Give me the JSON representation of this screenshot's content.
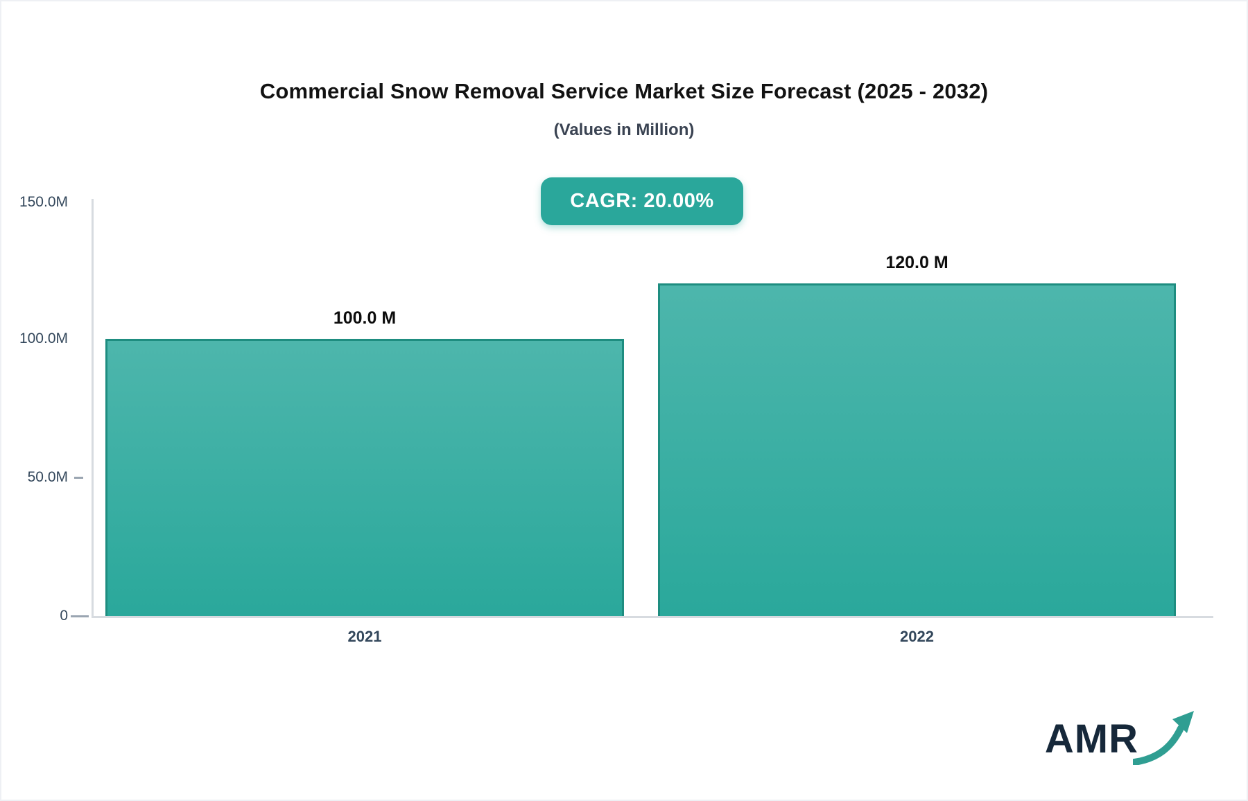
{
  "header": {
    "title": "Commercial Snow Removal Service Market Size Forecast (2025 - 2032)",
    "subtitle": "(Values in Million)"
  },
  "badge": {
    "label": "CAGR: 20.00%",
    "background": "#2aa79b",
    "text_color": "#ffffff"
  },
  "chart_data": {
    "type": "bar",
    "title": "Commercial Snow Removal Service Market Size Forecast (2025 - 2032)",
    "subtitle": "(Values in Million)",
    "unit": "Million",
    "cagr": "20.00%",
    "categories": [
      "2021",
      "2022"
    ],
    "values": [
      100.0,
      120.0
    ],
    "bar_labels": [
      "100.0 M",
      "120.0 M"
    ],
    "ylim": [
      0,
      150
    ],
    "ytick_labels": [
      "150.0M",
      "100.0M",
      "50.0M",
      "0"
    ],
    "ytick_values": [
      150,
      100,
      50,
      0
    ],
    "grid": false,
    "legend": "none",
    "bar_color_top": "#4db6ac",
    "bar_color_bottom": "#2aa89b",
    "bar_border": "#1e8d80",
    "axis_color": "#d7dbe0",
    "label_color": "#33475b"
  },
  "logo": {
    "text": "AMR",
    "text_color": "#16283a",
    "arrow_color": "#2f9e92"
  }
}
